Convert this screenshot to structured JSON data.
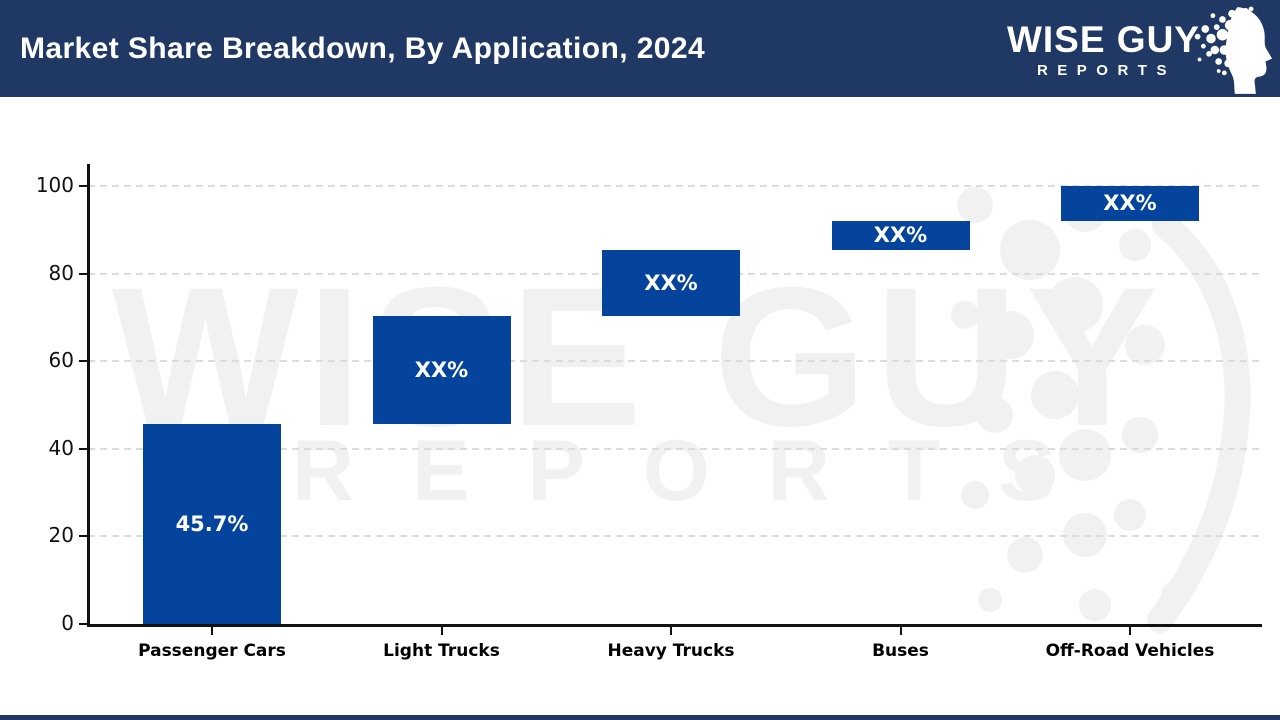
{
  "header": {
    "title": "Market Share Breakdown, By Application, 2024",
    "logo": {
      "line1": "WISE GUY",
      "line2": "REPORTS"
    }
  },
  "watermark": {
    "line1": "WISE GUY",
    "line2": "REPORTS"
  },
  "icons": {
    "logo_head": "head-profile-dots-icon",
    "watermark_head": "head-profile-dots-watermark"
  },
  "chart_data": {
    "type": "bar",
    "subtype": "waterfall",
    "title": "Market Share Breakdown, By Application, 2024",
    "categories": [
      "Passenger Cars",
      "Light Trucks",
      "Heavy Trucks",
      "Buses",
      "Off-Road Vehicles"
    ],
    "series": [
      {
        "name": "Market Share",
        "segments": [
          {
            "category": "Passenger Cars",
            "start": 0,
            "end": 45.7,
            "value": 45.7,
            "label": "45.7%"
          },
          {
            "category": "Light Trucks",
            "start": 45.7,
            "end": 70.3,
            "value": 24.6,
            "label": "XX%"
          },
          {
            "category": "Heavy Trucks",
            "start": 70.3,
            "end": 85.3,
            "value": 15.0,
            "label": "XX%"
          },
          {
            "category": "Buses",
            "start": 85.3,
            "end": 92.1,
            "value": 6.8,
            "label": "XX%"
          },
          {
            "category": "Off-Road Vehicles",
            "start": 92.1,
            "end": 100,
            "value": 7.9,
            "label": "XX%"
          }
        ]
      }
    ],
    "xlabel": "",
    "ylabel": "",
    "ylim": [
      0,
      105
    ],
    "yticks": [
      0,
      20,
      40,
      60,
      80,
      100
    ],
    "grid": "horizontal-dashed",
    "legend": "none",
    "bar_color": "#04449c",
    "label_color": "#ffffff",
    "axis_color": "#111111",
    "grid_color": "#dcdcdc"
  },
  "colors": {
    "header_bg": "#203864",
    "footer_bg": "#203864",
    "bar": "#04449c",
    "watermark": "#f1f1f1"
  }
}
